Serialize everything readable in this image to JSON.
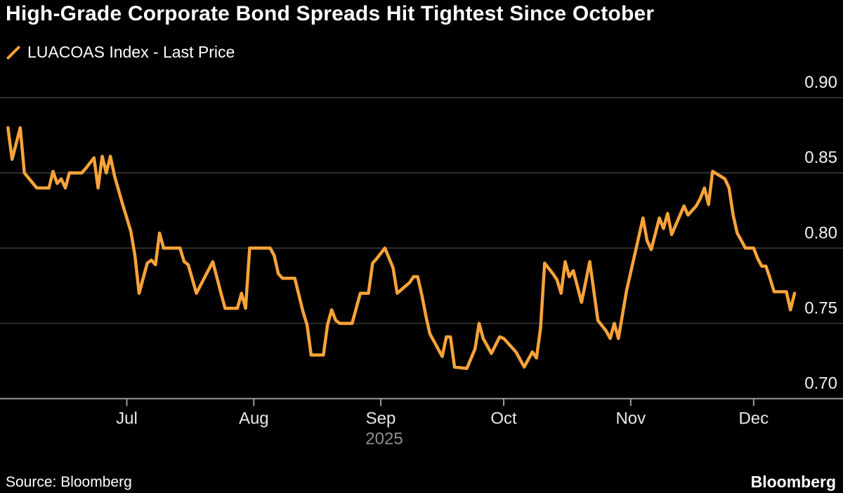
{
  "header": {
    "title": "High-Grade Corporate Bond Spreads Hit Tightest Since October",
    "legend": {
      "swatch": "orange-line-slash",
      "label": "LUACOAS Index - Last Price"
    }
  },
  "footer": {
    "source": "Source: Bloomberg",
    "brand": "Bloomberg"
  },
  "colors": {
    "background": "#000000",
    "line": "#F7A339",
    "grid": "#3A3A3A",
    "axis": "#9B9B9B",
    "y_label": "#F2F2F2",
    "month_label": "#E8E8E8",
    "year_label": "#8F8F8F",
    "title_text": "#FFFFFF"
  },
  "chart_data": {
    "type": "line",
    "title": "High-Grade Corporate Bond Spreads Hit Tightest Since October",
    "legend_label": "LUACOAS Index - Last Price",
    "legend_position": "top-left",
    "grid": "horizontal",
    "ylim": [
      0.7,
      0.92
    ],
    "baseline_value": 0.7,
    "x_range": [
      "2025-06-02",
      "2025-12-11"
    ],
    "y_ticks": [
      {
        "value": 0.9,
        "label": "0.90"
      },
      {
        "value": 0.85,
        "label": "0.85"
      },
      {
        "value": 0.8,
        "label": "0.80"
      },
      {
        "value": 0.75,
        "label": "0.75"
      },
      {
        "value": 0.7,
        "label": "0.70"
      }
    ],
    "x_ticks": [
      {
        "date": "2025-07-01",
        "label": "Jul"
      },
      {
        "date": "2025-08-01",
        "label": "Aug"
      },
      {
        "date": "2025-09-01",
        "label": "Sep"
      },
      {
        "date": "2025-10-01",
        "label": "Oct"
      },
      {
        "date": "2025-11-01",
        "label": "Nov"
      },
      {
        "date": "2025-12-01",
        "label": "Dec"
      }
    ],
    "year_label": {
      "text": "2025",
      "anchor_date": "2025-09-01"
    },
    "series": [
      {
        "name": "LUACOAS Index - Last Price",
        "color": "#F7A339",
        "points": [
          [
            "2025-06-02",
            0.88
          ],
          [
            "2025-06-03",
            0.859
          ],
          [
            "2025-06-05",
            0.88
          ],
          [
            "2025-06-06",
            0.85
          ],
          [
            "2025-06-09",
            0.84
          ],
          [
            "2025-06-12",
            0.84
          ],
          [
            "2025-06-13",
            0.851
          ],
          [
            "2025-06-14",
            0.843
          ],
          [
            "2025-06-15",
            0.846
          ],
          [
            "2025-06-16",
            0.84
          ],
          [
            "2025-06-17",
            0.85
          ],
          [
            "2025-06-20",
            0.85
          ],
          [
            "2025-06-21",
            0.853
          ],
          [
            "2025-06-23",
            0.86
          ],
          [
            "2025-06-24",
            0.84
          ],
          [
            "2025-06-25",
            0.861
          ],
          [
            "2025-06-26",
            0.85
          ],
          [
            "2025-06-27",
            0.861
          ],
          [
            "2025-06-28",
            0.848
          ],
          [
            "2025-06-30",
            0.829
          ],
          [
            "2025-07-01",
            0.82
          ],
          [
            "2025-07-02",
            0.811
          ],
          [
            "2025-07-03",
            0.795
          ],
          [
            "2025-07-04",
            0.77
          ],
          [
            "2025-07-05",
            0.78
          ],
          [
            "2025-07-06",
            0.79
          ],
          [
            "2025-07-07",
            0.792
          ],
          [
            "2025-07-08",
            0.789
          ],
          [
            "2025-07-09",
            0.81
          ],
          [
            "2025-07-10",
            0.8
          ],
          [
            "2025-07-14",
            0.8
          ],
          [
            "2025-07-15",
            0.791
          ],
          [
            "2025-07-16",
            0.789
          ],
          [
            "2025-07-18",
            0.77
          ],
          [
            "2025-07-22",
            0.791
          ],
          [
            "2025-07-24",
            0.77
          ],
          [
            "2025-07-25",
            0.76
          ],
          [
            "2025-07-28",
            0.76
          ],
          [
            "2025-07-29",
            0.77
          ],
          [
            "2025-07-30",
            0.76
          ],
          [
            "2025-07-31",
            0.8
          ],
          [
            "2025-08-05",
            0.8
          ],
          [
            "2025-08-06",
            0.795
          ],
          [
            "2025-08-07",
            0.783
          ],
          [
            "2025-08-08",
            0.78
          ],
          [
            "2025-08-11",
            0.78
          ],
          [
            "2025-08-13",
            0.758
          ],
          [
            "2025-08-14",
            0.749
          ],
          [
            "2025-08-15",
            0.729
          ],
          [
            "2025-08-18",
            0.729
          ],
          [
            "2025-08-19",
            0.749
          ],
          [
            "2025-08-20",
            0.759
          ],
          [
            "2025-08-21",
            0.752
          ],
          [
            "2025-08-22",
            0.75
          ],
          [
            "2025-08-25",
            0.75
          ],
          [
            "2025-08-27",
            0.77
          ],
          [
            "2025-08-29",
            0.77
          ],
          [
            "2025-08-30",
            0.79
          ],
          [
            "2025-08-31",
            0.793
          ],
          [
            "2025-09-02",
            0.8
          ],
          [
            "2025-09-04",
            0.787
          ],
          [
            "2025-09-05",
            0.77
          ],
          [
            "2025-09-08",
            0.777
          ],
          [
            "2025-09-09",
            0.781
          ],
          [
            "2025-09-10",
            0.781
          ],
          [
            "2025-09-11",
            0.769
          ],
          [
            "2025-09-12",
            0.755
          ],
          [
            "2025-09-13",
            0.743
          ],
          [
            "2025-09-14",
            0.738
          ],
          [
            "2025-09-15",
            0.733
          ],
          [
            "2025-09-16",
            0.728
          ],
          [
            "2025-09-17",
            0.741
          ],
          [
            "2025-09-18",
            0.741
          ],
          [
            "2025-09-19",
            0.721
          ],
          [
            "2025-09-22",
            0.72
          ],
          [
            "2025-09-24",
            0.733
          ],
          [
            "2025-09-25",
            0.75
          ],
          [
            "2025-09-26",
            0.74
          ],
          [
            "2025-09-27",
            0.735
          ],
          [
            "2025-09-28",
            0.73
          ],
          [
            "2025-09-30",
            0.741
          ],
          [
            "2025-10-01",
            0.74
          ],
          [
            "2025-10-02",
            0.737
          ],
          [
            "2025-10-04",
            0.731
          ],
          [
            "2025-10-06",
            0.721
          ],
          [
            "2025-10-08",
            0.731
          ],
          [
            "2025-10-09",
            0.727
          ],
          [
            "2025-10-10",
            0.747
          ],
          [
            "2025-10-11",
            0.79
          ],
          [
            "2025-10-13",
            0.783
          ],
          [
            "2025-10-14",
            0.779
          ],
          [
            "2025-10-15",
            0.77
          ],
          [
            "2025-10-16",
            0.791
          ],
          [
            "2025-10-17",
            0.781
          ],
          [
            "2025-10-18",
            0.785
          ],
          [
            "2025-10-20",
            0.764
          ],
          [
            "2025-10-22",
            0.791
          ],
          [
            "2025-10-24",
            0.752
          ],
          [
            "2025-10-26",
            0.745
          ],
          [
            "2025-10-27",
            0.74
          ],
          [
            "2025-10-28",
            0.75
          ],
          [
            "2025-10-29",
            0.74
          ],
          [
            "2025-10-31",
            0.772
          ],
          [
            "2025-11-03",
            0.808
          ],
          [
            "2025-11-04",
            0.82
          ],
          [
            "2025-11-05",
            0.805
          ],
          [
            "2025-11-06",
            0.799
          ],
          [
            "2025-11-08",
            0.82
          ],
          [
            "2025-11-09",
            0.813
          ],
          [
            "2025-11-10",
            0.823
          ],
          [
            "2025-11-11",
            0.809
          ],
          [
            "2025-11-14",
            0.828
          ],
          [
            "2025-11-15",
            0.822
          ],
          [
            "2025-11-17",
            0.828
          ],
          [
            "2025-11-18",
            0.833
          ],
          [
            "2025-11-19",
            0.84
          ],
          [
            "2025-11-20",
            0.829
          ],
          [
            "2025-11-21",
            0.851
          ],
          [
            "2025-11-24",
            0.846
          ],
          [
            "2025-11-25",
            0.84
          ],
          [
            "2025-11-26",
            0.822
          ],
          [
            "2025-11-27",
            0.81
          ],
          [
            "2025-11-28",
            0.805
          ],
          [
            "2025-11-29",
            0.8
          ],
          [
            "2025-12-01",
            0.8
          ],
          [
            "2025-12-02",
            0.793
          ],
          [
            "2025-12-03",
            0.788
          ],
          [
            "2025-12-04",
            0.788
          ],
          [
            "2025-12-05",
            0.78
          ],
          [
            "2025-12-06",
            0.771
          ],
          [
            "2025-12-09",
            0.771
          ],
          [
            "2025-12-10",
            0.759
          ],
          [
            "2025-12-11",
            0.77
          ]
        ]
      }
    ]
  }
}
